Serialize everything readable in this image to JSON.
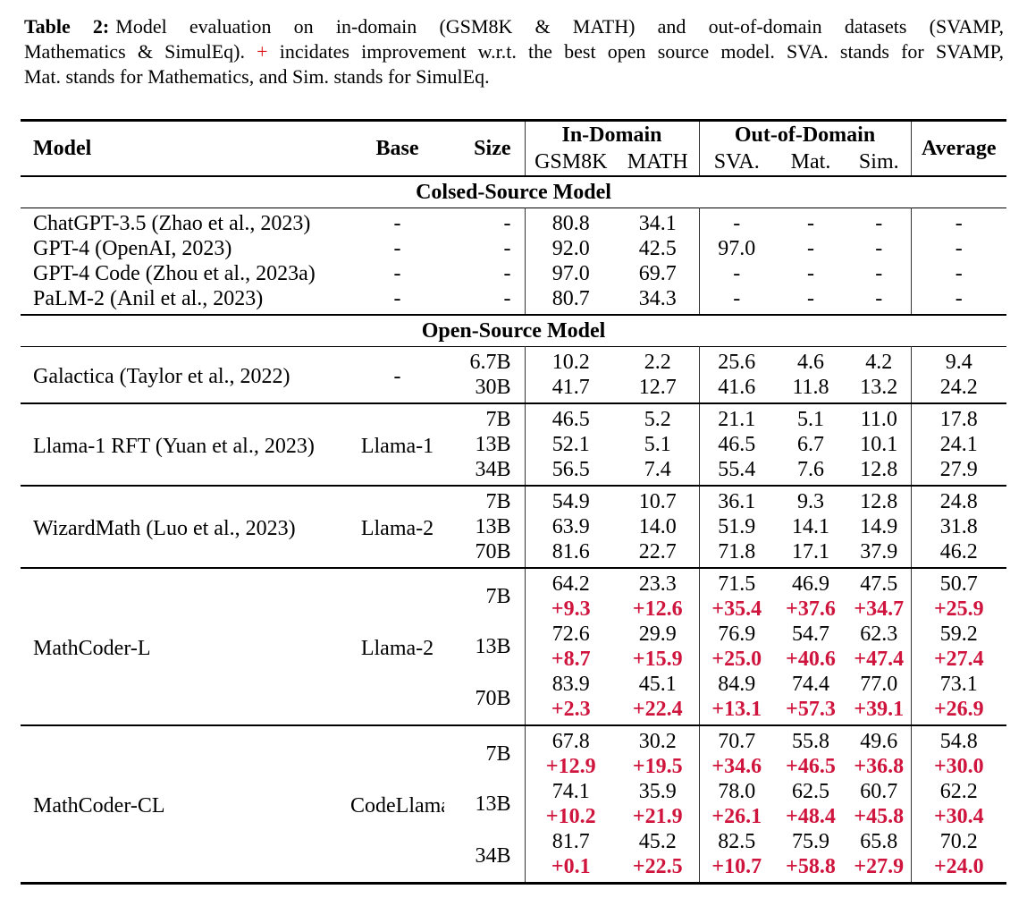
{
  "colors": {
    "delta_red": "#cf153d",
    "caption_plus_red": "#e01616"
  },
  "caption": {
    "label": "Table 2:",
    "line1_text": "Model evaluation on in-domain (GSM8K & MATH) and out-of-domain datasets (SVAMP,",
    "line2_pre": "Mathematics & SimulEq). ",
    "line2_plus": "+",
    "line2_post": " incidates improvement w.r.t. the best open source model. SVA. stands for SVAMP,",
    "line3": "Mat. stands for Mathematics, and Sim. stands for SimulEq."
  },
  "table": {
    "columns": {
      "model": "Model",
      "base": "Base",
      "size": "Size",
      "in_domain": "In-Domain",
      "out_of_domain": "Out-of-Domain",
      "gsm8k": "GSM8K",
      "math": "MATH",
      "sva": "SVA.",
      "mat": "Mat.",
      "sim": "Sim.",
      "average": "Average"
    },
    "sections": [
      {
        "title": "Colsed-Source Model",
        "separate_groups": false,
        "groups": [
          {
            "model": "ChatGPT-3.5 (Zhao et al., 2023)",
            "base": "-",
            "entries": [
              {
                "size": "-",
                "values": [
                  "80.8",
                  "34.1",
                  "-",
                  "-",
                  "-",
                  "-"
                ]
              }
            ]
          },
          {
            "model": "GPT-4 (OpenAI, 2023)",
            "base": "-",
            "entries": [
              {
                "size": "-",
                "values": [
                  "92.0",
                  "42.5",
                  "97.0",
                  "-",
                  "-",
                  "-"
                ]
              }
            ]
          },
          {
            "model": "GPT-4 Code (Zhou et al., 2023a)",
            "base": "-",
            "entries": [
              {
                "size": "-",
                "values": [
                  "97.0",
                  "69.7",
                  "-",
                  "-",
                  "-",
                  "-"
                ]
              }
            ]
          },
          {
            "model": "PaLM-2 (Anil et al., 2023)",
            "base": "-",
            "entries": [
              {
                "size": "-",
                "values": [
                  "80.7",
                  "34.3",
                  "-",
                  "-",
                  "-",
                  "-"
                ]
              }
            ]
          }
        ]
      },
      {
        "title": "Open-Source Model",
        "separate_groups": true,
        "groups": [
          {
            "model": "Galactica (Taylor et al., 2022)",
            "base": "-",
            "entries": [
              {
                "size": "6.7B",
                "values": [
                  "10.2",
                  "2.2",
                  "25.6",
                  "4.6",
                  "4.2",
                  "9.4"
                ]
              },
              {
                "size": "30B",
                "values": [
                  "41.7",
                  "12.7",
                  "41.6",
                  "11.8",
                  "13.2",
                  "24.2"
                ]
              }
            ]
          },
          {
            "model": "Llama-1 RFT (Yuan et al., 2023)",
            "base": "Llama-1",
            "entries": [
              {
                "size": "7B",
                "values": [
                  "46.5",
                  "5.2",
                  "21.1",
                  "5.1",
                  "11.0",
                  "17.8"
                ]
              },
              {
                "size": "13B",
                "values": [
                  "52.1",
                  "5.1",
                  "46.5",
                  "6.7",
                  "10.1",
                  "24.1"
                ]
              },
              {
                "size": "34B",
                "values": [
                  "56.5",
                  "7.4",
                  "55.4",
                  "7.6",
                  "12.8",
                  "27.9"
                ]
              }
            ]
          },
          {
            "model": "WizardMath (Luo et al., 2023)",
            "base": "Llama-2",
            "entries": [
              {
                "size": "7B",
                "values": [
                  "54.9",
                  "10.7",
                  "36.1",
                  "9.3",
                  "12.8",
                  "24.8"
                ]
              },
              {
                "size": "13B",
                "values": [
                  "63.9",
                  "14.0",
                  "51.9",
                  "14.1",
                  "14.9",
                  "31.8"
                ]
              },
              {
                "size": "70B",
                "values": [
                  "81.6",
                  "22.7",
                  "71.8",
                  "17.1",
                  "37.9",
                  "46.2"
                ]
              }
            ]
          },
          {
            "model": "MathCoder-L",
            "base": "Llama-2",
            "entries": [
              {
                "size": "7B",
                "values": [
                  "64.2",
                  "23.3",
                  "71.5",
                  "46.9",
                  "47.5",
                  "50.7"
                ],
                "deltas": [
                  "+9.3",
                  "+12.6",
                  "+35.4",
                  "+37.6",
                  "+34.7",
                  "+25.9"
                ]
              },
              {
                "size": "13B",
                "values": [
                  "72.6",
                  "29.9",
                  "76.9",
                  "54.7",
                  "62.3",
                  "59.2"
                ],
                "deltas": [
                  "+8.7",
                  "+15.9",
                  "+25.0",
                  "+40.6",
                  "+47.4",
                  "+27.4"
                ]
              },
              {
                "size": "70B",
                "values": [
                  "83.9",
                  "45.1",
                  "84.9",
                  "74.4",
                  "77.0",
                  "73.1"
                ],
                "deltas": [
                  "+2.3",
                  "+22.4",
                  "+13.1",
                  "+57.3",
                  "+39.1",
                  "+26.9"
                ]
              }
            ]
          },
          {
            "model": "MathCoder-CL",
            "base": "CodeLlama",
            "entries": [
              {
                "size": "7B",
                "values": [
                  "67.8",
                  "30.2",
                  "70.7",
                  "55.8",
                  "49.6",
                  "54.8"
                ],
                "deltas": [
                  "+12.9",
                  "+19.5",
                  "+34.6",
                  "+46.5",
                  "+36.8",
                  "+30.0"
                ]
              },
              {
                "size": "13B",
                "values": [
                  "74.1",
                  "35.9",
                  "78.0",
                  "62.5",
                  "60.7",
                  "62.2"
                ],
                "deltas": [
                  "+10.2",
                  "+21.9",
                  "+26.1",
                  "+48.4",
                  "+45.8",
                  "+30.4"
                ]
              },
              {
                "size": "34B",
                "values": [
                  "81.7",
                  "45.2",
                  "82.5",
                  "75.9",
                  "65.8",
                  "70.2"
                ],
                "deltas": [
                  "+0.1",
                  "+22.5",
                  "+10.7",
                  "+58.8",
                  "+27.9",
                  "+24.0"
                ]
              }
            ]
          }
        ]
      }
    ]
  }
}
